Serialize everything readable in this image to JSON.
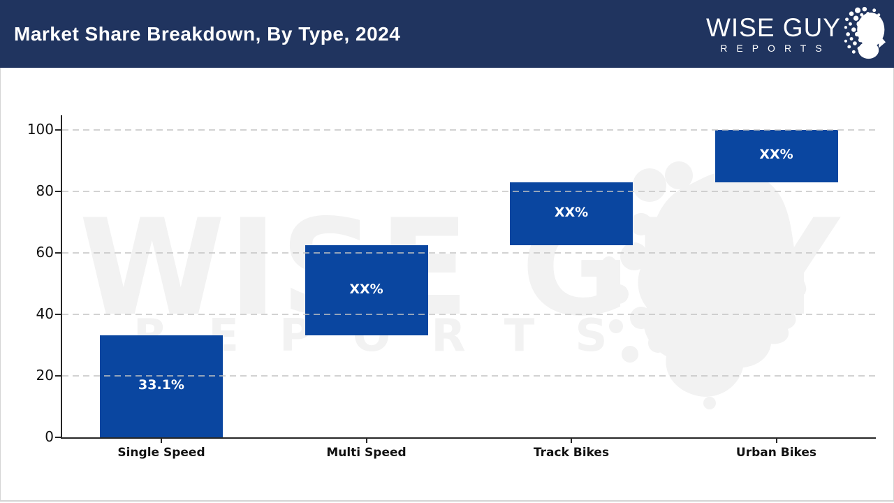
{
  "header": {
    "title": "Market Share Breakdown, By Type, 2024",
    "bg_color": "#20345F",
    "logo": {
      "name": "WISE GUY",
      "tagline": "REPORTS"
    }
  },
  "watermark": {
    "word1": "WISE GUY",
    "word2": "REPORTS"
  },
  "icons": {
    "logo_head": "dotted-head-profile-icon",
    "watermark_head": "dotted-head-profile-icon"
  },
  "chart_data": {
    "type": "bar",
    "variant": "waterfall",
    "title": "Market Share Breakdown, By Type, 2024",
    "categories": [
      "Single Speed",
      "Multi Speed",
      "Track Bikes",
      "Urban Bikes"
    ],
    "segments": [
      {
        "category": "Single Speed",
        "start": 0,
        "end": 33.1,
        "label": "33.1%"
      },
      {
        "category": "Multi Speed",
        "start": 33.1,
        "end": 62.5,
        "label": "XX%"
      },
      {
        "category": "Track Bikes",
        "start": 62.5,
        "end": 83.0,
        "label": "XX%"
      },
      {
        "category": "Urban Bikes",
        "start": 83.0,
        "end": 100.0,
        "label": "XX%"
      }
    ],
    "xlabel": "",
    "ylabel": "",
    "yticks": [
      0,
      20,
      40,
      60,
      80,
      100
    ],
    "ylim": [
      0,
      105
    ],
    "grid": "horizontal-dashed",
    "legend": null,
    "bar_color": "#0A46A0",
    "bar_label_color": "#FFFFFF",
    "axis_color": "#262626",
    "grid_color": "#D9D9D9",
    "tick_label_color": "#111111"
  }
}
